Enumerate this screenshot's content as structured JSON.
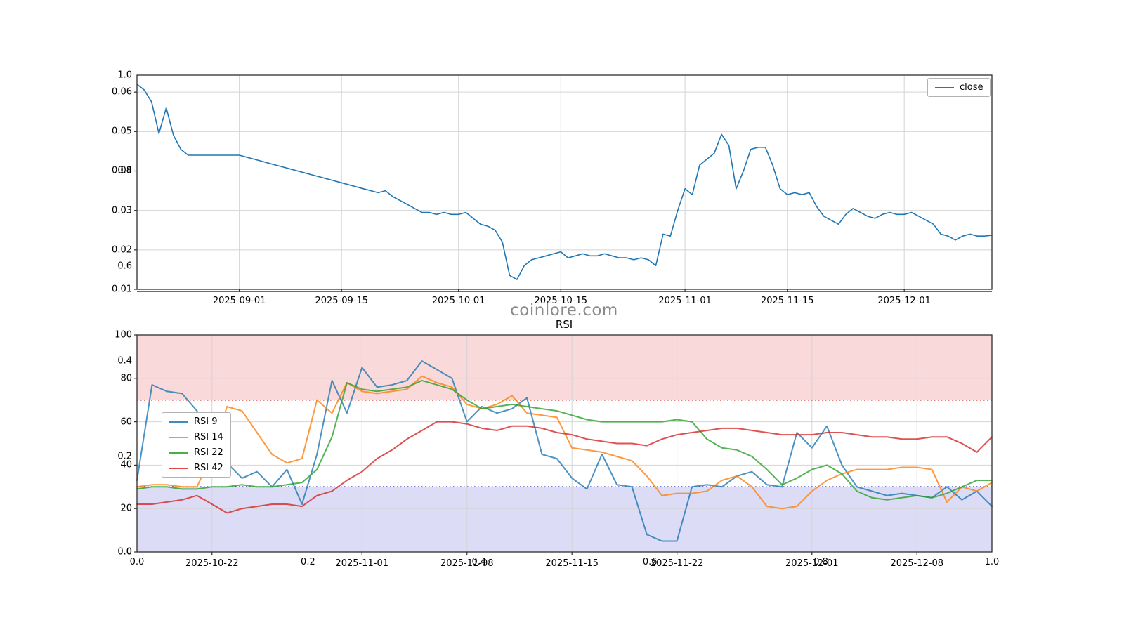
{
  "watermark": "coinlore.com",
  "overlay_axis": {
    "ticks": [
      "0.0",
      "0.2",
      "0.4",
      "0.6",
      "0.8",
      "1.0"
    ]
  },
  "chart_data": [
    {
      "type": "line",
      "title": "",
      "legend_position": "upper right",
      "grid": true,
      "ylim": [
        0.01,
        0.0643
      ],
      "yticks": [
        "0.01",
        "0.02",
        "0.03",
        "0.04",
        "0.05",
        "0.06"
      ],
      "xticks": [
        "2025-09-01",
        "2025-09-15",
        "2025-10-01",
        "2025-10-15",
        "2025-11-01",
        "2025-11-15",
        "2025-12-01"
      ],
      "x": [
        "2025-08-18",
        "2025-08-19",
        "2025-08-20",
        "2025-08-21",
        "2025-08-22",
        "2025-08-23",
        "2025-08-24",
        "2025-08-25",
        "2025-08-26",
        "2025-08-27",
        "2025-08-28",
        "2025-08-29",
        "2025-08-30",
        "2025-08-31",
        "2025-09-01",
        "2025-09-02",
        "2025-09-03",
        "2025-09-04",
        "2025-09-05",
        "2025-09-06",
        "2025-09-07",
        "2025-09-08",
        "2025-09-09",
        "2025-09-10",
        "2025-09-11",
        "2025-09-12",
        "2025-09-13",
        "2025-09-14",
        "2025-09-15",
        "2025-09-16",
        "2025-09-17",
        "2025-09-18",
        "2025-09-19",
        "2025-09-20",
        "2025-09-21",
        "2025-09-22",
        "2025-09-23",
        "2025-09-24",
        "2025-09-25",
        "2025-09-26",
        "2025-09-27",
        "2025-09-28",
        "2025-09-29",
        "2025-09-30",
        "2025-10-01",
        "2025-10-02",
        "2025-10-03",
        "2025-10-04",
        "2025-10-05",
        "2025-10-06",
        "2025-10-07",
        "2025-10-08",
        "2025-10-09",
        "2025-10-10",
        "2025-10-11",
        "2025-10-12",
        "2025-10-13",
        "2025-10-14",
        "2025-10-15",
        "2025-10-16",
        "2025-10-17",
        "2025-10-18",
        "2025-10-19",
        "2025-10-20",
        "2025-10-21",
        "2025-10-22",
        "2025-10-23",
        "2025-10-24",
        "2025-10-25",
        "2025-10-26",
        "2025-10-27",
        "2025-10-28",
        "2025-10-29",
        "2025-10-30",
        "2025-10-31",
        "2025-11-01",
        "2025-11-02",
        "2025-11-03",
        "2025-11-04",
        "2025-11-05",
        "2025-11-06",
        "2025-11-07",
        "2025-11-08",
        "2025-11-09",
        "2025-11-10",
        "2025-11-11",
        "2025-11-12",
        "2025-11-13",
        "2025-11-14",
        "2025-11-15",
        "2025-11-16",
        "2025-11-17",
        "2025-11-18",
        "2025-11-19",
        "2025-11-20",
        "2025-11-21",
        "2025-11-22",
        "2025-11-23",
        "2025-11-24",
        "2025-11-25",
        "2025-11-26",
        "2025-11-27",
        "2025-11-28",
        "2025-11-29",
        "2025-11-30",
        "2025-12-01",
        "2025-12-02",
        "2025-12-03",
        "2025-12-04",
        "2025-12-05",
        "2025-12-06",
        "2025-12-07",
        "2025-12-08",
        "2025-12-09",
        "2025-12-10",
        "2025-12-11",
        "2025-12-12",
        "2025-12-13"
      ],
      "series": [
        {
          "name": "close",
          "color": "#1f77b4",
          "values": [
            0.062,
            0.0605,
            0.0575,
            0.0495,
            0.056,
            0.049,
            0.0455,
            0.044,
            0.044,
            0.044,
            0.044,
            0.044,
            0.044,
            0.044,
            0.044,
            0.0435,
            0.043,
            0.0425,
            0.042,
            0.0415,
            0.041,
            0.0405,
            0.04,
            0.0395,
            0.039,
            0.0385,
            0.038,
            0.0375,
            0.037,
            0.0365,
            0.036,
            0.0355,
            0.035,
            0.0345,
            0.035,
            0.0335,
            0.0325,
            0.0315,
            0.0305,
            0.0295,
            0.0295,
            0.029,
            0.0295,
            0.029,
            0.029,
            0.0295,
            0.028,
            0.0265,
            0.026,
            0.025,
            0.022,
            0.0135,
            0.0125,
            0.016,
            0.0175,
            0.018,
            0.0185,
            0.019,
            0.0195,
            0.018,
            0.0185,
            0.019,
            0.0185,
            0.0185,
            0.019,
            0.0185,
            0.018,
            0.018,
            0.0175,
            0.018,
            0.0175,
            0.016,
            0.024,
            0.0235,
            0.03,
            0.0355,
            0.034,
            0.0415,
            0.043,
            0.0445,
            0.0493,
            0.0465,
            0.0355,
            0.04,
            0.0455,
            0.046,
            0.046,
            0.0415,
            0.0355,
            0.034,
            0.0345,
            0.034,
            0.0345,
            0.031,
            0.0285,
            0.0275,
            0.0265,
            0.029,
            0.0305,
            0.0295,
            0.0285,
            0.028,
            0.029,
            0.0295,
            0.029,
            0.029,
            0.0295,
            0.0285,
            0.0275,
            0.0265,
            0.024,
            0.0235,
            0.0225,
            0.0235,
            0.024,
            0.0235,
            0.0235,
            0.0237
          ]
        }
      ]
    },
    {
      "type": "line",
      "title": "RSI",
      "legend_position": "center left",
      "grid": true,
      "ylim": [
        0,
        100
      ],
      "yticks": [
        "0",
        "20",
        "40",
        "60",
        "80",
        "100"
      ],
      "xticks": [
        "2025-10-22",
        "2025-11-01",
        "2025-11-08",
        "2025-11-15",
        "2025-11-22",
        "2025-12-01",
        "2025-12-08"
      ],
      "bands": [
        {
          "from": 70,
          "to": 100,
          "color": "#f9d9d9"
        },
        {
          "from": 0,
          "to": 30,
          "color": "#dcdcf6"
        }
      ],
      "hlines": [
        {
          "y": 70,
          "color": "#e00000",
          "style": "dotted"
        },
        {
          "y": 30,
          "color": "#0000b8",
          "style": "dotted"
        }
      ],
      "x": [
        "2025-10-17",
        "2025-10-18",
        "2025-10-19",
        "2025-10-20",
        "2025-10-21",
        "2025-10-22",
        "2025-10-23",
        "2025-10-24",
        "2025-10-25",
        "2025-10-26",
        "2025-10-27",
        "2025-10-28",
        "2025-10-29",
        "2025-10-30",
        "2025-10-31",
        "2025-11-01",
        "2025-11-02",
        "2025-11-03",
        "2025-11-04",
        "2025-11-05",
        "2025-11-06",
        "2025-11-07",
        "2025-11-08",
        "2025-11-09",
        "2025-11-10",
        "2025-11-11",
        "2025-11-12",
        "2025-11-13",
        "2025-11-14",
        "2025-11-15",
        "2025-11-16",
        "2025-11-17",
        "2025-11-18",
        "2025-11-19",
        "2025-11-20",
        "2025-11-21",
        "2025-11-22",
        "2025-11-23",
        "2025-11-24",
        "2025-11-25",
        "2025-11-26",
        "2025-11-27",
        "2025-11-28",
        "2025-11-29",
        "2025-11-30",
        "2025-12-01",
        "2025-12-02",
        "2025-12-03",
        "2025-12-04",
        "2025-12-05",
        "2025-12-06",
        "2025-12-07",
        "2025-12-08",
        "2025-12-09",
        "2025-12-10",
        "2025-12-11",
        "2025-12-12",
        "2025-12-13"
      ],
      "series": [
        {
          "name": "RSI 9",
          "color": "#1f77b4",
          "values": [
            33,
            77,
            74,
            73,
            65,
            47,
            41,
            34,
            37,
            30,
            38,
            22,
            45,
            79,
            64,
            85,
            76,
            77,
            79,
            88,
            84,
            80,
            60,
            67,
            64,
            66,
            71,
            45,
            43,
            34,
            29,
            45,
            31,
            30,
            8,
            5,
            5,
            30,
            31,
            30,
            35,
            37,
            31,
            30,
            55,
            48,
            58,
            40,
            30,
            28,
            26,
            27,
            26,
            25,
            30,
            24,
            28,
            21
          ]
        },
        {
          "name": "RSI 14",
          "color": "#ff7f0e",
          "values": [
            30,
            31,
            31,
            30,
            30,
            45,
            67,
            65,
            55,
            45,
            41,
            43,
            70,
            64,
            78,
            74,
            73,
            74,
            75,
            81,
            78,
            76,
            68,
            66,
            68,
            72,
            64,
            63,
            62,
            48,
            47,
            46,
            44,
            42,
            35,
            26,
            27,
            27,
            28,
            33,
            35,
            30,
            21,
            20,
            21,
            28,
            33,
            36,
            38,
            38,
            38,
            39,
            39,
            38,
            23,
            30,
            28,
            32
          ]
        },
        {
          "name": "RSI 22",
          "color": "#2ca02c",
          "values": [
            29,
            30,
            30,
            29,
            29,
            30,
            30,
            31,
            30,
            30,
            31,
            32,
            38,
            53,
            78,
            75,
            74,
            75,
            76,
            79,
            77,
            75,
            70,
            66,
            67,
            68,
            67,
            66,
            65,
            63,
            61,
            60,
            60,
            60,
            60,
            60,
            61,
            60,
            52,
            48,
            47,
            44,
            38,
            31,
            34,
            38,
            40,
            36,
            28,
            25,
            24,
            25,
            26,
            25,
            27,
            30,
            33,
            33
          ]
        },
        {
          "name": "RSI 42",
          "color": "#d62728",
          "values": [
            22,
            22,
            23,
            24,
            26,
            22,
            18,
            20,
            21,
            22,
            22,
            21,
            26,
            28,
            33,
            37,
            43,
            47,
            52,
            56,
            60,
            60,
            59,
            57,
            56,
            58,
            58,
            57,
            55,
            54,
            52,
            51,
            50,
            50,
            49,
            52,
            54,
            55,
            56,
            57,
            57,
            56,
            55,
            54,
            54,
            54,
            55,
            55,
            54,
            53,
            53,
            52,
            52,
            53,
            53,
            50,
            46,
            53
          ]
        }
      ]
    }
  ]
}
